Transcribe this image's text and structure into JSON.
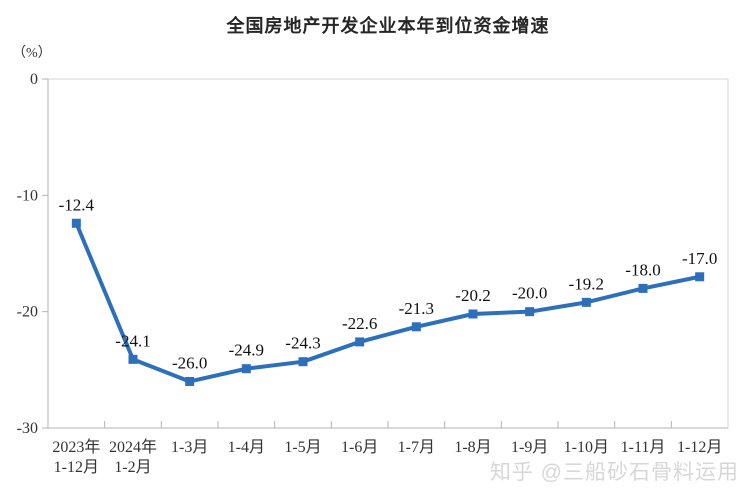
{
  "title": "全国房地产开发企业本年到位资金增速",
  "unit_label": "（%）",
  "watermark": "知乎 @三船砂石骨料运用",
  "colors": {
    "series": "#2e6fbc",
    "axis": "#b3b3b3",
    "border": "#d4d4d4"
  },
  "chart_data": {
    "type": "line",
    "title": "全国房地产开发企业本年到位资金增速",
    "ylabel": "（%）",
    "xlabel": "",
    "ylim": [
      -30,
      0
    ],
    "yticks": [
      0,
      -10,
      -20,
      -30
    ],
    "grid": false,
    "legend_position": "none",
    "series_name": "本年到位资金增速",
    "categories": [
      [
        "2023年",
        "1-12月"
      ],
      [
        "2024年",
        "1-2月"
      ],
      [
        "1-3月"
      ],
      [
        "1-4月"
      ],
      [
        "1-5月"
      ],
      [
        "1-6月"
      ],
      [
        "1-7月"
      ],
      [
        "1-8月"
      ],
      [
        "1-9月"
      ],
      [
        "1-10月"
      ],
      [
        "1-11月"
      ],
      [
        "1-12月"
      ]
    ],
    "values": [
      -12.4,
      -24.1,
      -26.0,
      -24.9,
      -24.3,
      -22.6,
      -21.3,
      -20.2,
      -20.0,
      -19.2,
      -18.0,
      -17.0
    ],
    "data_labels": [
      "-12.4",
      "-24.1",
      "-26.0",
      "-24.9",
      "-24.3",
      "-22.6",
      "-21.3",
      "-20.2",
      "-20.0",
      "-19.2",
      "-18.0",
      "-17.0"
    ]
  }
}
